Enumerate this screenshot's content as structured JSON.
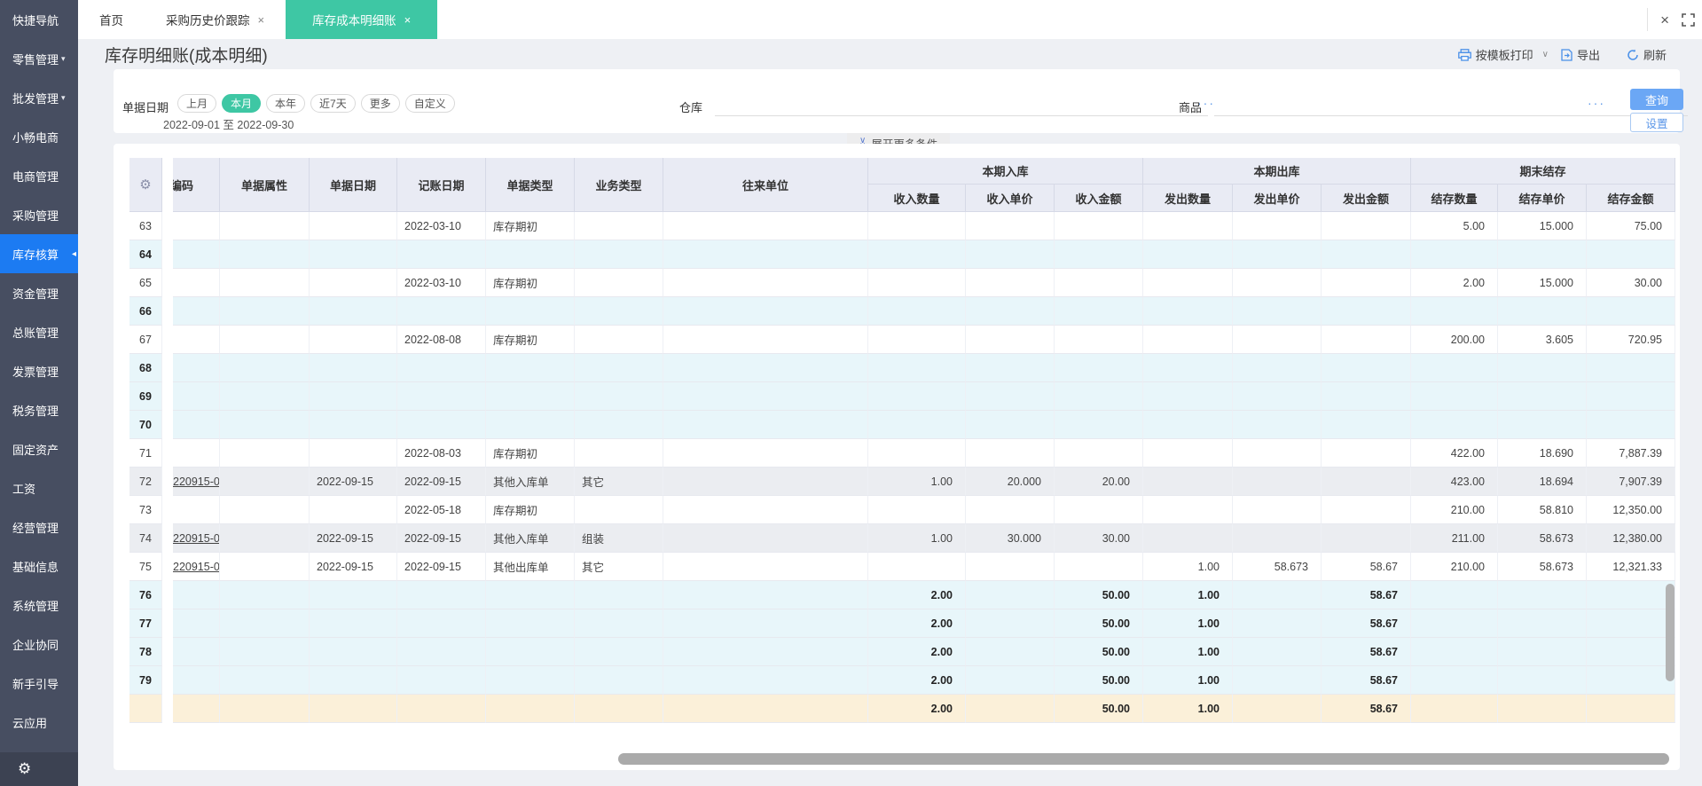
{
  "sidebar": {
    "items": [
      {
        "key": "quick-nav",
        "label": "快捷导航"
      },
      {
        "key": "retail",
        "label": "零售管理",
        "caret": true
      },
      {
        "key": "wholesale",
        "label": "批发管理",
        "caret": true
      },
      {
        "key": "xiaochang-ec",
        "label": "小畅电商"
      },
      {
        "key": "ec-mgmt",
        "label": "电商管理"
      },
      {
        "key": "purchase",
        "label": "采购管理"
      },
      {
        "key": "inventory-accounting",
        "label": "库存核算",
        "active": true
      },
      {
        "key": "funds",
        "label": "资金管理"
      },
      {
        "key": "general-ledger",
        "label": "总账管理"
      },
      {
        "key": "invoice",
        "label": "发票管理"
      },
      {
        "key": "tax",
        "label": "税务管理"
      },
      {
        "key": "fixed-assets",
        "label": "固定资产"
      },
      {
        "key": "payroll",
        "label": "工资"
      },
      {
        "key": "operations",
        "label": "经营管理"
      },
      {
        "key": "base-info",
        "label": "基础信息"
      },
      {
        "key": "system",
        "label": "系统管理"
      },
      {
        "key": "enterprise-collab",
        "label": "企业协同"
      },
      {
        "key": "newbie-guide",
        "label": "新手引导"
      },
      {
        "key": "cloud-apps",
        "label": "云应用"
      }
    ]
  },
  "tabs": [
    {
      "key": "home",
      "label": "首页",
      "closable": false,
      "active": false
    },
    {
      "key": "purchase-history",
      "label": "采购历史价跟踪",
      "closable": true,
      "active": false
    },
    {
      "key": "inventory-detail",
      "label": "库存成本明细账",
      "closable": true,
      "active": true
    }
  ],
  "window_controls": {
    "close": "×"
  },
  "page": {
    "title": "库存明细账(成本明细)"
  },
  "toolbar": {
    "print": "按模板打印",
    "export": "导出",
    "refresh": "刷新"
  },
  "filters": {
    "date_label": "单据日期",
    "date_pills": [
      {
        "label": "上月"
      },
      {
        "label": "本月",
        "selected": true
      },
      {
        "label": "本年"
      },
      {
        "label": "近7天"
      },
      {
        "label": "更多"
      },
      {
        "label": "自定义"
      }
    ],
    "date_range": "2022-09-01 至 2022-09-30",
    "warehouse_label": "仓库",
    "product_label": "商品",
    "ellipsis": "···",
    "expand_more": "展开更多条件",
    "query": "查询",
    "settings": "设置"
  },
  "table": {
    "headers": {
      "code": "编码",
      "attr": "单据属性",
      "doc_date": "单据日期",
      "book_date": "记账日期",
      "doc_type": "单据类型",
      "biz_type": "业务类型",
      "partner": "往来单位",
      "group_in": "本期入库",
      "group_out": "本期出库",
      "group_bal": "期末结存",
      "in_qty": "收入数量",
      "in_price": "收入单价",
      "in_amt": "收入金额",
      "out_qty": "发出数量",
      "out_price": "发出单价",
      "out_amt": "发出金额",
      "bal_qty": "结存数量",
      "bal_price": "结存单价",
      "bal_amt": "结存金额"
    },
    "rows": [
      {
        "num": "63",
        "style": "white",
        "book_date": "2022-03-10",
        "doc_type": "库存期初",
        "bal_qty": "5.00",
        "bal_price": "15.000",
        "bal_amt": "75.00"
      },
      {
        "num": "64",
        "style": "blue"
      },
      {
        "num": "65",
        "style": "white",
        "book_date": "2022-03-10",
        "doc_type": "库存期初",
        "bal_qty": "2.00",
        "bal_price": "15.000",
        "bal_amt": "30.00"
      },
      {
        "num": "66",
        "style": "blue"
      },
      {
        "num": "67",
        "style": "white",
        "book_date": "2022-08-08",
        "doc_type": "库存期初",
        "bal_qty": "200.00",
        "bal_price": "3.605",
        "bal_amt": "720.95"
      },
      {
        "num": "68",
        "style": "blue"
      },
      {
        "num": "69",
        "style": "blue"
      },
      {
        "num": "70",
        "style": "blue"
      },
      {
        "num": "71",
        "style": "white",
        "book_date": "2022-08-03",
        "doc_type": "库存期初",
        "bal_qty": "422.00",
        "bal_price": "18.690",
        "bal_amt": "7,887.39"
      },
      {
        "num": "72",
        "style": "gray",
        "code": "220915-0",
        "doc_date": "2022-09-15",
        "book_date": "2022-09-15",
        "doc_type": "其他入库单",
        "biz_type": "其它",
        "in_qty": "1.00",
        "in_price": "20.000",
        "in_amt": "20.00",
        "bal_qty": "423.00",
        "bal_price": "18.694",
        "bal_amt": "7,907.39"
      },
      {
        "num": "73",
        "style": "white",
        "book_date": "2022-05-18",
        "doc_type": "库存期初",
        "bal_qty": "210.00",
        "bal_price": "58.810",
        "bal_amt": "12,350.00"
      },
      {
        "num": "74",
        "style": "gray",
        "code": "220915-0",
        "doc_date": "2022-09-15",
        "book_date": "2022-09-15",
        "doc_type": "其他入库单",
        "biz_type": "组装",
        "in_qty": "1.00",
        "in_price": "30.000",
        "in_amt": "30.00",
        "bal_qty": "211.00",
        "bal_price": "58.673",
        "bal_amt": "12,380.00"
      },
      {
        "num": "75",
        "style": "white",
        "code": "220915-0",
        "doc_date": "2022-09-15",
        "book_date": "2022-09-15",
        "doc_type": "其他出库单",
        "biz_type": "其它",
        "out_qty": "1.00",
        "out_price": "58.673",
        "out_amt": "58.67",
        "bal_qty": "210.00",
        "bal_price": "58.673",
        "bal_amt": "12,321.33"
      },
      {
        "num": "76",
        "style": "blue",
        "in_qty": "2.00",
        "in_amt": "50.00",
        "out_qty": "1.00",
        "out_amt": "58.67"
      },
      {
        "num": "77",
        "style": "blue",
        "in_qty": "2.00",
        "in_amt": "50.00",
        "out_qty": "1.00",
        "out_amt": "58.67"
      },
      {
        "num": "78",
        "style": "blue",
        "in_qty": "2.00",
        "in_amt": "50.00",
        "out_qty": "1.00",
        "out_amt": "58.67"
      },
      {
        "num": "79",
        "style": "blue",
        "in_qty": "2.00",
        "in_amt": "50.00",
        "out_qty": "1.00",
        "out_amt": "58.67"
      },
      {
        "num": "",
        "style": "yellow",
        "in_qty": "2.00",
        "in_amt": "50.00",
        "out_qty": "1.00",
        "out_amt": "58.67"
      }
    ]
  },
  "colors": {
    "sidebar_bg": "#474E61",
    "sidebar_active_blue": "#1C7BF2",
    "active_tab_teal": "#3EC7A4",
    "query_button_blue": "#6BA7F5",
    "header_bg": "#E9EBF4",
    "stripe_blue": "#E8F6FA",
    "stripe_gray": "#EBEDF1",
    "highlight_yellow": "#FBF0D9",
    "page_bg": "#EEF0F4"
  }
}
